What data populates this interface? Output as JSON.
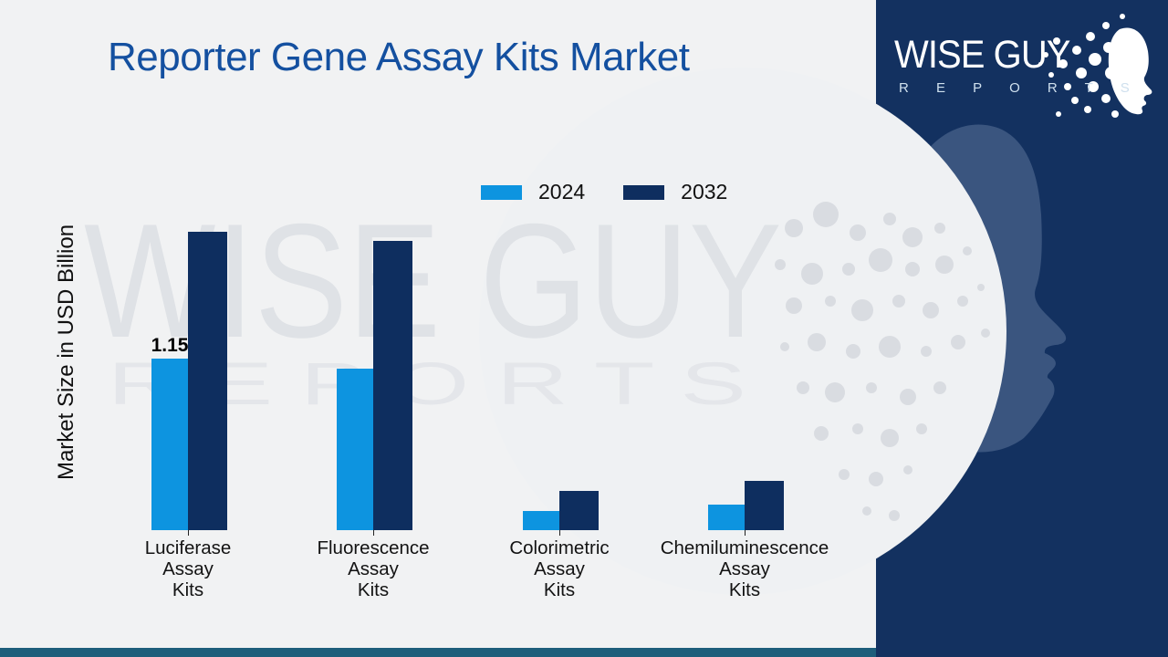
{
  "page": {
    "background_color": "#f1f2f3",
    "bottom_strip_color": "#1e5e7b"
  },
  "header": {
    "title": "Reporter Gene Assay Kits Market",
    "title_color": "#1450a0"
  },
  "brand": {
    "name": "WISE GUY",
    "subname": "R E P O R T S",
    "panel_color": "#133160",
    "face_color": "#3a557f"
  },
  "watermark": {
    "line1": "WISE GUY",
    "line2": "R E P O R T S"
  },
  "chart_data": {
    "type": "bar",
    "title": "Reporter Gene Assay Kits Market",
    "xlabel": "",
    "ylabel": "Market Size in USD Billion",
    "categories": [
      "Luciferase Assay Kits",
      "Fluorescence Assay Kits",
      "Colorimetric Assay Kits",
      "Chemiluminescence Assay Kits"
    ],
    "series": [
      {
        "name": "2024",
        "color": "#0d94e0",
        "values": [
          1.15,
          1.08,
          0.13,
          0.17
        ]
      },
      {
        "name": "2032",
        "color": "#0e2e5f",
        "values": [
          2.0,
          1.94,
          0.26,
          0.33
        ]
      }
    ],
    "annotations": [
      {
        "series": "2024",
        "category_index": 0,
        "text": "1.15"
      }
    ],
    "ylim": [
      0,
      2.2
    ],
    "grid": false,
    "legend_position": "top",
    "unit": "USD Billion"
  }
}
